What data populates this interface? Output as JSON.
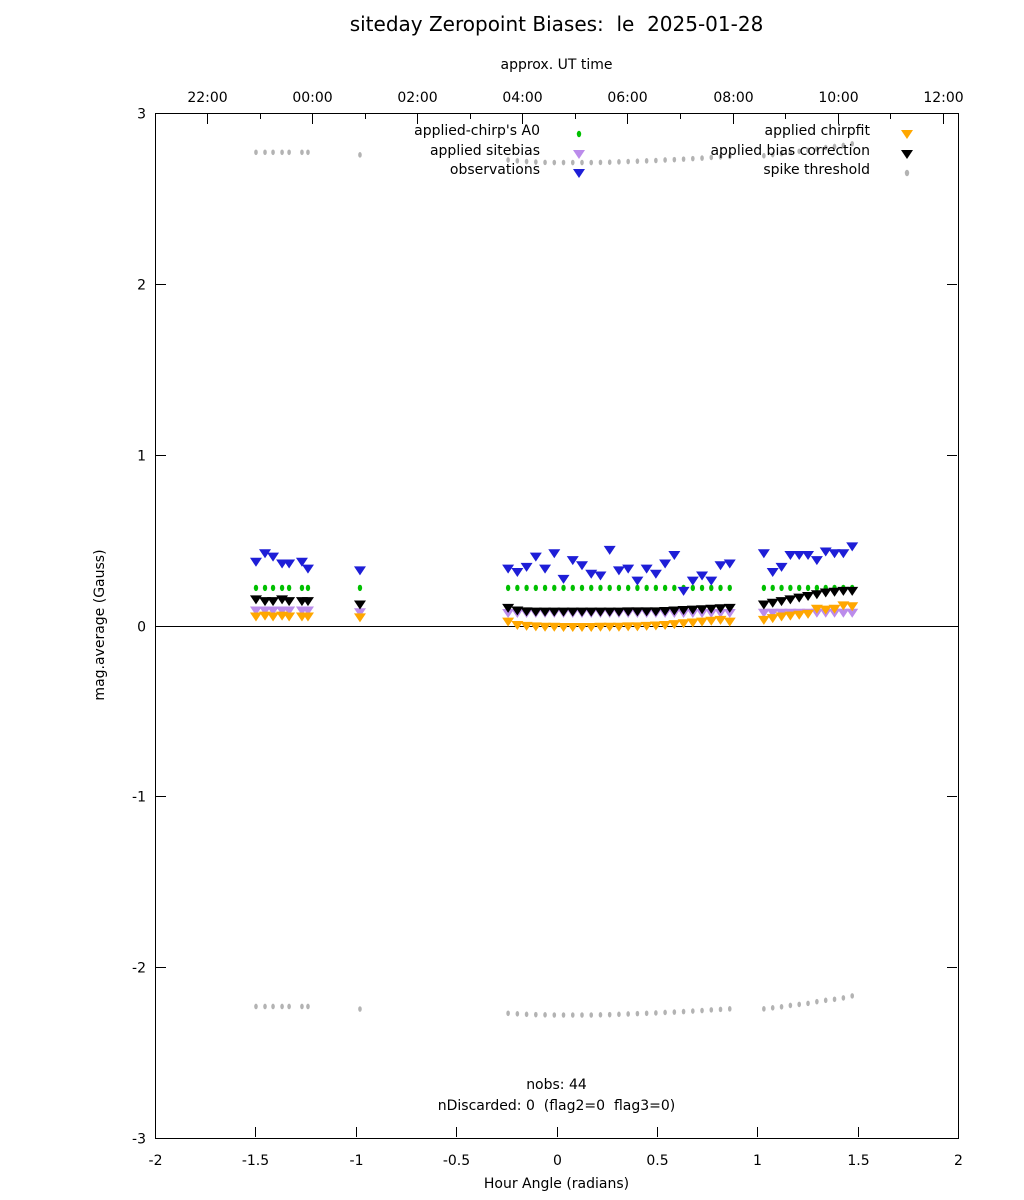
{
  "title": "siteday Zeropoint Biases:  le  2025-01-28",
  "annotations": {
    "nobs": "nobs: 44",
    "ndiscarded": "nDiscarded: 0  (flag2=0  flag3=0)"
  },
  "legend": {
    "items": [
      {
        "label": "applied-chirp's A0",
        "marker": "dot",
        "color": "#00c000"
      },
      {
        "label": "applied chirpfit",
        "marker": "triangle",
        "color": "#ffa700"
      },
      {
        "label": "applied sitebias",
        "marker": "triangle",
        "color": "#bb8ceb"
      },
      {
        "label": "applied bias correction",
        "marker": "triangle",
        "color": "#000000"
      },
      {
        "label": "observations",
        "marker": "triangle",
        "color": "#1e1ed7"
      },
      {
        "label": "spike threshold",
        "marker": "dot",
        "color": "#b3b3b3"
      }
    ]
  },
  "chart_data": {
    "type": "scatter",
    "title": "siteday Zeropoint Biases:  le  2025-01-28",
    "xlabel": "Hour Angle (radians)",
    "ylabel": "mag.average (Gauss)",
    "top_axis_label": "approx. UT time",
    "x_axis": {
      "min": -2,
      "max": 2,
      "ticks": [
        -2,
        -1.5,
        -1,
        -0.5,
        0,
        0.5,
        1,
        1.5,
        2
      ]
    },
    "y_axis": {
      "min": -3,
      "max": 3,
      "ticks": [
        3,
        2,
        1,
        0,
        -1,
        -2,
        -3
      ]
    },
    "top_axis": {
      "major_ticks": [
        {
          "label": "22:00",
          "x": -1.741
        },
        {
          "label": "00:00",
          "x": -1.218
        },
        {
          "label": "02:00",
          "x": -0.694
        },
        {
          "label": "04:00",
          "x": -0.171
        },
        {
          "label": "06:00",
          "x": 0.353
        },
        {
          "label": "08:00",
          "x": 0.877
        },
        {
          "label": "10:00",
          "x": 1.4
        },
        {
          "label": "12:00",
          "x": 1.924
        }
      ],
      "minor_ticks": [
        -1.479,
        -0.956,
        -0.433,
        0.09,
        0.615,
        1.138,
        1.662
      ]
    },
    "zero_line": true,
    "nobs": 44,
    "x": [
      -1.497,
      -1.452,
      -1.412,
      -1.367,
      -1.332,
      -1.268,
      -1.238,
      -0.979,
      -0.241,
      -0.195,
      -0.149,
      -0.103,
      -0.057,
      -0.011,
      0.035,
      0.081,
      0.127,
      0.173,
      0.219,
      0.265,
      0.311,
      0.357,
      0.403,
      0.449,
      0.495,
      0.541,
      0.587,
      0.633,
      0.679,
      0.725,
      0.771,
      0.817,
      0.863,
      1.033,
      1.077,
      1.121,
      1.165,
      1.209,
      1.253,
      1.297,
      1.341,
      1.385,
      1.429,
      1.473
    ],
    "series": [
      {
        "name": "spike threshold (upper)",
        "marker": "dot",
        "size": "small",
        "color": "#b3b3b3",
        "values": [
          2.77,
          2.77,
          2.77,
          2.77,
          2.77,
          2.77,
          2.77,
          2.755,
          2.725,
          2.72,
          2.716,
          2.713,
          2.711,
          2.71,
          2.71,
          2.71,
          2.71,
          2.71,
          2.711,
          2.712,
          2.714,
          2.716,
          2.718,
          2.72,
          2.722,
          2.725,
          2.727,
          2.73,
          2.733,
          2.736,
          2.74,
          2.743,
          2.746,
          2.75,
          2.756,
          2.762,
          2.77,
          2.776,
          2.782,
          2.79,
          2.798,
          2.804,
          2.81,
          2.82
        ]
      },
      {
        "name": "spike threshold (lower)",
        "marker": "dot",
        "size": "small",
        "color": "#b3b3b3",
        "values": [
          -2.23,
          -2.23,
          -2.23,
          -2.23,
          -2.23,
          -2.23,
          -2.23,
          -2.245,
          -2.27,
          -2.273,
          -2.276,
          -2.278,
          -2.279,
          -2.28,
          -2.28,
          -2.28,
          -2.28,
          -2.28,
          -2.279,
          -2.278,
          -2.276,
          -2.274,
          -2.272,
          -2.27,
          -2.268,
          -2.265,
          -2.263,
          -2.26,
          -2.257,
          -2.254,
          -2.25,
          -2.247,
          -2.244,
          -2.244,
          -2.238,
          -2.232,
          -2.224,
          -2.218,
          -2.212,
          -2.202,
          -2.194,
          -2.188,
          -2.18,
          -2.168
        ]
      },
      {
        "name": "applied-chirp's A0",
        "marker": "dot",
        "size": "normal",
        "color": "#00c000",
        "values": [
          0.22,
          0.22,
          0.22,
          0.22,
          0.22,
          0.22,
          0.22,
          0.22,
          0.22,
          0.22,
          0.22,
          0.22,
          0.22,
          0.22,
          0.22,
          0.22,
          0.22,
          0.22,
          0.22,
          0.22,
          0.22,
          0.22,
          0.22,
          0.22,
          0.22,
          0.22,
          0.22,
          0.22,
          0.22,
          0.22,
          0.22,
          0.22,
          0.22,
          0.22,
          0.22,
          0.22,
          0.22,
          0.22,
          0.22,
          0.22,
          0.22,
          0.22,
          0.22,
          0.22
        ]
      },
      {
        "name": "observations",
        "marker": "triangle",
        "size": "normal",
        "color": "#1e1ed7",
        "values": [
          0.37,
          0.42,
          0.4,
          0.36,
          0.36,
          0.37,
          0.33,
          0.32,
          0.33,
          0.31,
          0.34,
          0.4,
          0.33,
          0.42,
          0.27,
          0.38,
          0.35,
          0.3,
          0.29,
          0.44,
          0.32,
          0.33,
          0.26,
          0.33,
          0.3,
          0.36,
          0.41,
          0.2,
          0.26,
          0.29,
          0.26,
          0.35,
          0.36,
          0.42,
          0.31,
          0.34,
          0.41,
          0.41,
          0.41,
          0.38,
          0.43,
          0.42,
          0.42,
          0.46
        ]
      },
      {
        "name": "applied sitebias",
        "marker": "triangle",
        "size": "normal",
        "color": "#bb8ceb",
        "values": [
          0.085,
          0.085,
          0.085,
          0.085,
          0.085,
          0.085,
          0.085,
          0.075,
          0.07,
          0.07,
          0.07,
          0.07,
          0.07,
          0.07,
          0.07,
          0.07,
          0.07,
          0.07,
          0.07,
          0.07,
          0.07,
          0.07,
          0.07,
          0.07,
          0.07,
          0.07,
          0.07,
          0.07,
          0.07,
          0.07,
          0.07,
          0.07,
          0.07,
          0.072,
          0.072,
          0.072,
          0.072,
          0.072,
          0.072,
          0.072,
          0.072,
          0.072,
          0.072,
          0.072
        ]
      },
      {
        "name": "applied bias correction",
        "marker": "triangle",
        "size": "normal",
        "color": "#000000",
        "values": [
          0.15,
          0.14,
          0.14,
          0.15,
          0.14,
          0.14,
          0.14,
          0.12,
          0.1,
          0.085,
          0.08,
          0.078,
          0.078,
          0.078,
          0.078,
          0.078,
          0.078,
          0.078,
          0.078,
          0.078,
          0.078,
          0.08,
          0.08,
          0.08,
          0.08,
          0.082,
          0.085,
          0.088,
          0.09,
          0.092,
          0.095,
          0.098,
          0.1,
          0.12,
          0.13,
          0.14,
          0.15,
          0.16,
          0.17,
          0.18,
          0.19,
          0.195,
          0.2,
          0.2
        ]
      },
      {
        "name": "applied chirpfit",
        "marker": "triangle",
        "size": "normal",
        "color": "#ffa700",
        "values": [
          0.05,
          0.055,
          0.05,
          0.055,
          0.05,
          0.05,
          0.05,
          0.045,
          0.02,
          0.0,
          -0.005,
          -0.008,
          -0.01,
          -0.01,
          -0.012,
          -0.012,
          -0.012,
          -0.012,
          -0.01,
          -0.01,
          -0.01,
          -0.008,
          -0.008,
          -0.005,
          -0.003,
          0.0,
          0.005,
          0.01,
          0.015,
          0.02,
          0.025,
          0.03,
          0.02,
          0.03,
          0.04,
          0.05,
          0.055,
          0.06,
          0.065,
          0.095,
          0.09,
          0.095,
          0.115,
          0.11
        ]
      }
    ]
  }
}
